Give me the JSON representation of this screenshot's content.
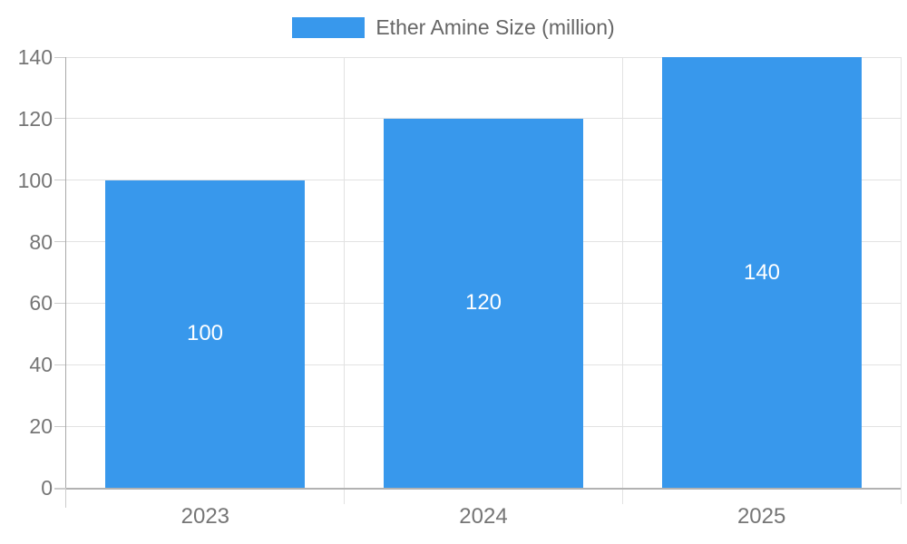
{
  "chart_data": {
    "type": "bar",
    "title": "",
    "legend": {
      "label": "Ether Amine Size (million)",
      "position": "top-center"
    },
    "categories": [
      "2023",
      "2024",
      "2025"
    ],
    "series": [
      {
        "name": "Ether Amine Size (million)",
        "values": [
          100,
          120,
          140
        ]
      }
    ],
    "values": [
      100,
      120,
      140
    ],
    "data_labels": [
      "100",
      "120",
      "140"
    ],
    "xlabel": "",
    "ylabel": "",
    "ylim": [
      0,
      140
    ],
    "yticks": [
      0,
      20,
      40,
      60,
      80,
      100,
      120,
      140
    ],
    "grid": true,
    "colors": {
      "bar": "#3898ec",
      "data_label": "#ffffff",
      "axis_text": "#757575",
      "legend_text": "#666666",
      "gridline": "#e2e2e2",
      "y_axis_line": "#a8a8a8",
      "x_axis_line": "#b2b2b2",
      "tick_mark": "#cccccc"
    }
  }
}
